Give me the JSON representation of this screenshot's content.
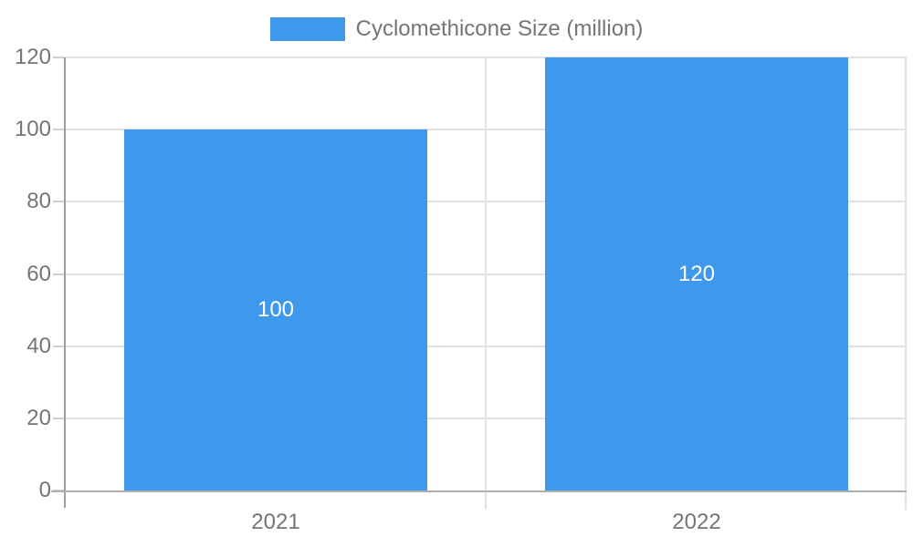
{
  "chart_data": {
    "type": "bar",
    "categories": [
      "2021",
      "2022"
    ],
    "series": [
      {
        "name": "Cyclomethicone Size (million)",
        "values": [
          100,
          120
        ]
      }
    ],
    "value_labels": [
      "100",
      "120"
    ],
    "title": "",
    "xlabel": "",
    "ylabel": "",
    "ylim": [
      0,
      120
    ],
    "yticks": [
      0,
      20,
      40,
      60,
      80,
      100,
      120
    ],
    "grid": true,
    "legend_position": "top"
  },
  "colors": {
    "bar": "#3E99ED",
    "text": "#757575",
    "value_text": "#FFFFFF",
    "grid": "#E2E2E2",
    "tick": "#CFCFCF",
    "axis_y": "#9E9E9E",
    "axis_x": "#B0B0B0",
    "background": "#FFFFFF"
  }
}
